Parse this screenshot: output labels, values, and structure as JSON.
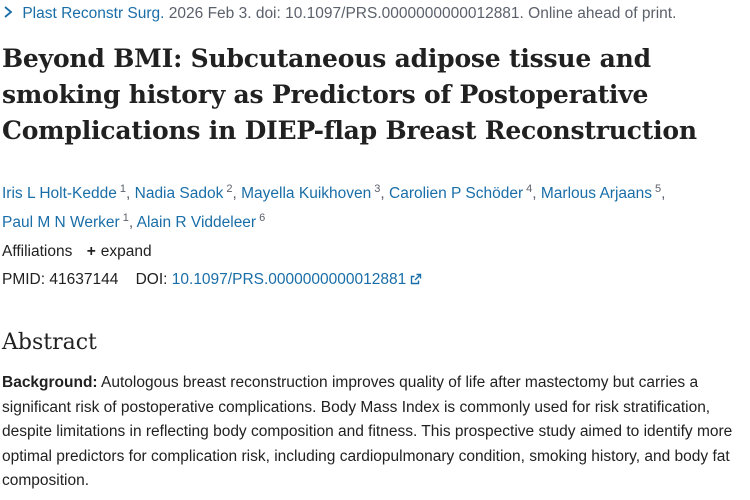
{
  "citation": {
    "journal": "Plast Reconstr Surg.",
    "details": "2026 Feb 3. doi: 10.1097/PRS.0000000000012881. Online ahead of print."
  },
  "title": "Beyond BMI: Subcutaneous adipose tissue and smoking history as Predictors of Postoperative Complications in DIEP-flap Breast Reconstruction",
  "authors": [
    {
      "name": "Iris L Holt-Kedde",
      "sup": "1"
    },
    {
      "name": "Nadia Sadok",
      "sup": "2"
    },
    {
      "name": "Mayella Kuikhoven",
      "sup": "3"
    },
    {
      "name": "Carolien P Schöder",
      "sup": "4"
    },
    {
      "name": "Marlous Arjaans",
      "sup": "5"
    },
    {
      "name": "Paul M N Werker",
      "sup": "1"
    },
    {
      "name": "Alain R Viddeleer",
      "sup": "6"
    }
  ],
  "affiliations": {
    "label": "Affiliations",
    "expand": "expand"
  },
  "ids": {
    "pmid_label": "PMID:",
    "pmid": "41637144",
    "doi_label": "DOI:",
    "doi": "10.1097/PRS.0000000000012881"
  },
  "abstract": {
    "heading": "Abstract",
    "background_label": "Background:",
    "background_text": "Autologous breast reconstruction improves quality of life after mastectomy but carries a significant risk of postoperative complications. Body Mass Index is commonly used for risk stratification, despite limitations in reflecting body composition and fitness. This prospective study aimed to identify more optimal predictors for complication risk, including cardiopulmonary condition, smoking history, and body fat composition."
  },
  "icons": {
    "citation_toggle": "chevron-right-icon",
    "affiliations_toggle": "plus-icon",
    "doi_external": "external-link-icon"
  },
  "colors": {
    "link": "#1a6ea8",
    "muted": "#5b616b",
    "text": "#212121"
  }
}
